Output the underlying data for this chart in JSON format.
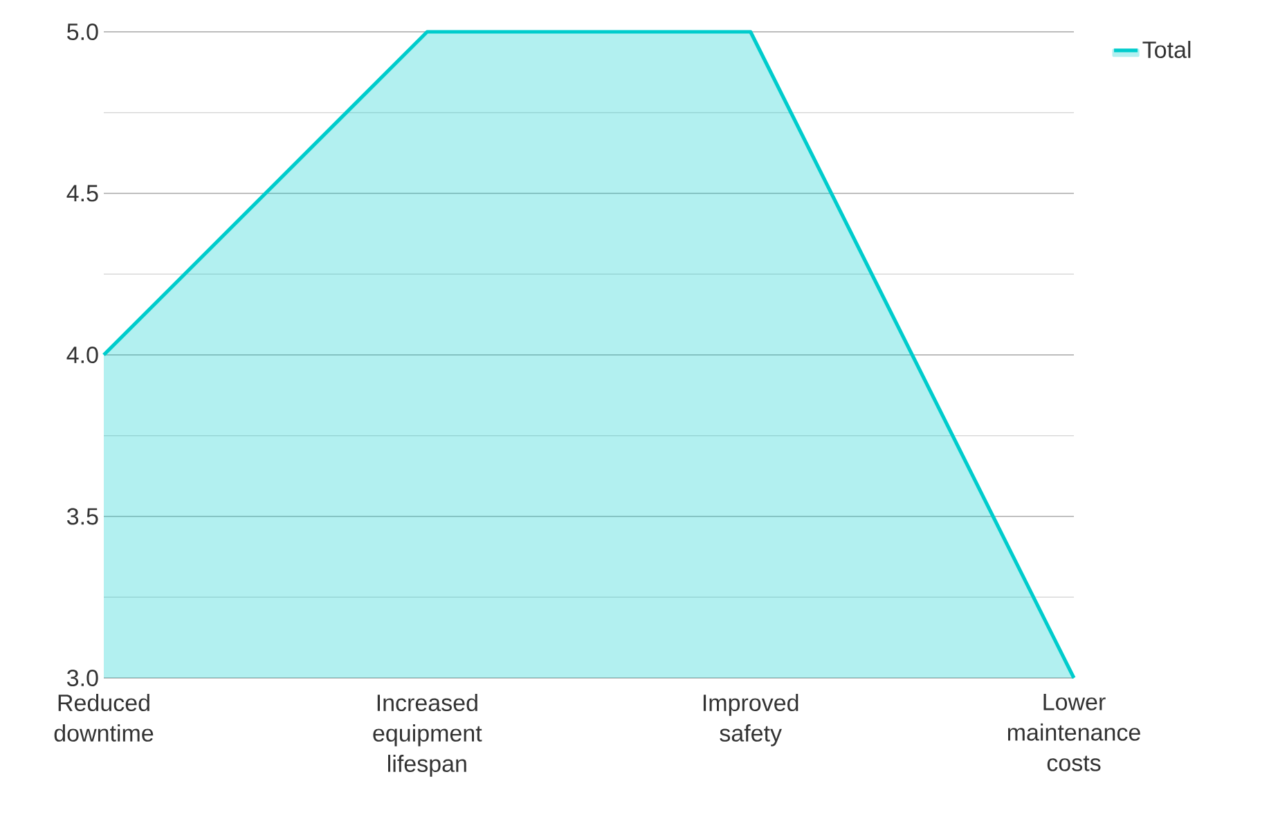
{
  "chart_data": {
    "type": "area",
    "categories": [
      "Reduced downtime",
      "Increased equipment lifespan",
      "Improved safety",
      "Lower maintenance costs"
    ],
    "series": [
      {
        "name": "Total",
        "color": "#00cccc",
        "values": [
          4,
          5,
          5,
          3
        ]
      }
    ],
    "ylim": [
      3,
      5
    ],
    "yticks": [
      {
        "value": 3,
        "label": "3.0"
      },
      {
        "value": 3.5,
        "label": "3.5"
      },
      {
        "value": 4,
        "label": "4.0"
      },
      {
        "value": 4.5,
        "label": "4.5"
      },
      {
        "value": 5,
        "label": "5.0"
      }
    ],
    "grid": "y",
    "legend": "top right"
  }
}
